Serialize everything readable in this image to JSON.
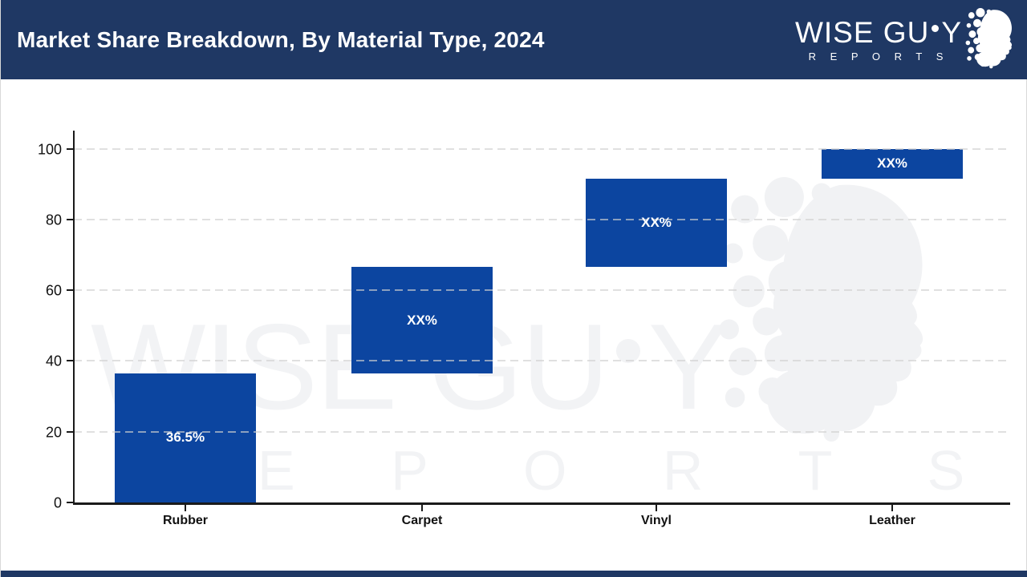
{
  "header": {
    "title": "Market Share Breakdown, By Material Type, 2024",
    "logo": {
      "word1": "WISE GU",
      "word2": "Y",
      "line2": "R E P O R T S"
    }
  },
  "watermark": {
    "word1": "WISE GU",
    "word2": "Y",
    "line2": "R E P O R T S"
  },
  "colors": {
    "header_bg": "#1f3864",
    "bar_blue": "#0c45a0",
    "grid": "#dedede",
    "axis": "#1a1a1a",
    "watermark": "#f2f3f5"
  },
  "chart_data": {
    "type": "bar",
    "variant": "waterfall",
    "title": "Market Share Breakdown, By Material Type, 2024",
    "categories": [
      "Rubber",
      "Carpet",
      "Vinyl",
      "Leather"
    ],
    "segments": [
      {
        "category": "Rubber",
        "start": 0,
        "end": 36.5,
        "label": "36.5%"
      },
      {
        "category": "Carpet",
        "start": 36.5,
        "end": 66.5,
        "label": "XX%"
      },
      {
        "category": "Vinyl",
        "start": 66.5,
        "end": 91.5,
        "label": "XX%"
      },
      {
        "category": "Leather",
        "start": 91.5,
        "end": 100,
        "label": "XX%"
      }
    ],
    "yticks": [
      0,
      20,
      40,
      60,
      80,
      100
    ],
    "ylim": [
      0,
      105
    ],
    "xlabel": "",
    "ylabel": "",
    "grid": "horizontal-dashed",
    "legend": "none",
    "bar_color": "#0c45a0",
    "bar_label_color": "#ffffff"
  }
}
